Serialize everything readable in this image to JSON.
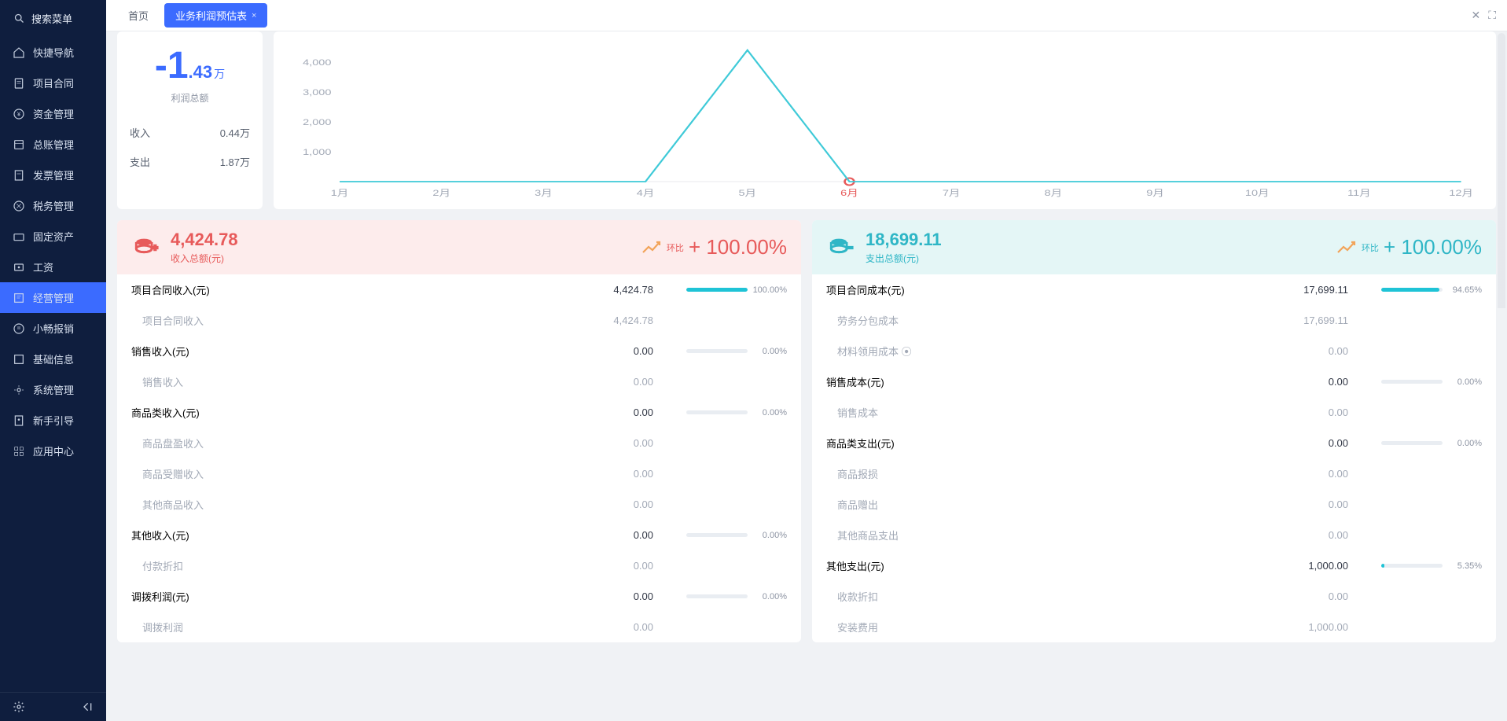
{
  "sidebar": {
    "search_label": "搜索菜单",
    "items": [
      {
        "label": "快捷导航",
        "icon": "home"
      },
      {
        "label": "项目合同",
        "icon": "doc"
      },
      {
        "label": "资金管理",
        "icon": "money"
      },
      {
        "label": "总账管理",
        "icon": "ledger"
      },
      {
        "label": "发票管理",
        "icon": "invoice"
      },
      {
        "label": "税务管理",
        "icon": "tax"
      },
      {
        "label": "固定资产",
        "icon": "asset"
      },
      {
        "label": "工资",
        "icon": "salary"
      },
      {
        "label": "经营管理",
        "icon": "biz",
        "active": true
      },
      {
        "label": "小畅报销",
        "icon": "expense"
      },
      {
        "label": "基础信息",
        "icon": "info"
      },
      {
        "label": "系统管理",
        "icon": "system"
      },
      {
        "label": "新手引导",
        "icon": "guide"
      },
      {
        "label": "应用中心",
        "icon": "apps"
      }
    ]
  },
  "tabs": {
    "home": "首页",
    "active": "业务利润预估表"
  },
  "kpi": {
    "int": "-1",
    "dec": ".43",
    "unit": "万",
    "label": "利润总额",
    "rows": [
      {
        "label": "收入",
        "value": "0.44万"
      },
      {
        "label": "支出",
        "value": "1.87万"
      }
    ]
  },
  "chart": {
    "type": "line",
    "y_ticks": [
      "4,000",
      "3,000",
      "2,000",
      "1,000"
    ],
    "y_max": 4500,
    "y_step": 1000,
    "line_color": "#3fcad8",
    "grid_color": "#e8eaee",
    "axis_text_color": "#a2a9b6",
    "axis_fontsize": 11,
    "highlight_color": "#e75a5a",
    "highlight_index": 5,
    "categories": [
      "1月",
      "2月",
      "3月",
      "4月",
      "5月",
      "6月",
      "7月",
      "8月",
      "9月",
      "10月",
      "11月",
      "12月"
    ],
    "values": [
      0,
      0,
      0,
      0,
      4400,
      0,
      0,
      0,
      0,
      0,
      0,
      0
    ]
  },
  "income": {
    "total": "4,424.78",
    "total_label": "收入总额(元)",
    "ratio_label": "环比",
    "ratio_value": "+ 100.00%",
    "icon_color": "#e75a5a",
    "bar_color": "#1fc3d6",
    "rows": [
      {
        "label": "项目合同收入(元)",
        "value": "4,424.78",
        "pct": "100.00%",
        "fill": 100
      },
      {
        "label": "项目合同收入",
        "value": "4,424.78",
        "sub": true
      },
      {
        "label": "销售收入(元)",
        "value": "0.00",
        "pct": "0.00%",
        "fill": 0
      },
      {
        "label": "销售收入",
        "value": "0.00",
        "sub": true
      },
      {
        "label": "商品类收入(元)",
        "value": "0.00",
        "pct": "0.00%",
        "fill": 0
      },
      {
        "label": "商品盘盈收入",
        "value": "0.00",
        "sub": true
      },
      {
        "label": "商品受赠收入",
        "value": "0.00",
        "sub": true
      },
      {
        "label": "其他商品收入",
        "value": "0.00",
        "sub": true
      },
      {
        "label": "其他收入(元)",
        "value": "0.00",
        "pct": "0.00%",
        "fill": 0
      },
      {
        "label": "付款折扣",
        "value": "0.00",
        "sub": true
      },
      {
        "label": "调拨利润(元)",
        "value": "0.00",
        "pct": "0.00%",
        "fill": 0
      },
      {
        "label": "调拨利润",
        "value": "0.00",
        "sub": true
      }
    ]
  },
  "expense": {
    "total": "18,699.11",
    "total_label": "支出总额(元)",
    "ratio_label": "环比",
    "ratio_value": "+ 100.00%",
    "icon_color": "#2fb6c6",
    "bar_color": "#1fc3d6",
    "rows": [
      {
        "label": "项目合同成本(元)",
        "value": "17,699.11",
        "pct": "94.65%",
        "fill": 94.65
      },
      {
        "label": "劳务分包成本",
        "value": "17,699.11",
        "sub": true
      },
      {
        "label": "材料领用成本 ⦿",
        "value": "0.00",
        "sub": true
      },
      {
        "label": "销售成本(元)",
        "value": "0.00",
        "pct": "0.00%",
        "fill": 0
      },
      {
        "label": "销售成本",
        "value": "0.00",
        "sub": true
      },
      {
        "label": "商品类支出(元)",
        "value": "0.00",
        "pct": "0.00%",
        "fill": 0
      },
      {
        "label": "商品报损",
        "value": "0.00",
        "sub": true
      },
      {
        "label": "商品赠出",
        "value": "0.00",
        "sub": true
      },
      {
        "label": "其他商品支出",
        "value": "0.00",
        "sub": true
      },
      {
        "label": "其他支出(元)",
        "value": "1,000.00",
        "pct": "5.35%",
        "fill": 5.35
      },
      {
        "label": "收款折扣",
        "value": "0.00",
        "sub": true
      },
      {
        "label": "安装费用",
        "value": "1,000.00",
        "sub": true
      }
    ]
  },
  "colors": {
    "sidebar_bg": "#0f1e3e",
    "primary": "#3b6bff",
    "income_accent": "#e75a5a",
    "expense_accent": "#2fb6c6",
    "bar_track": "#e9edf2"
  }
}
